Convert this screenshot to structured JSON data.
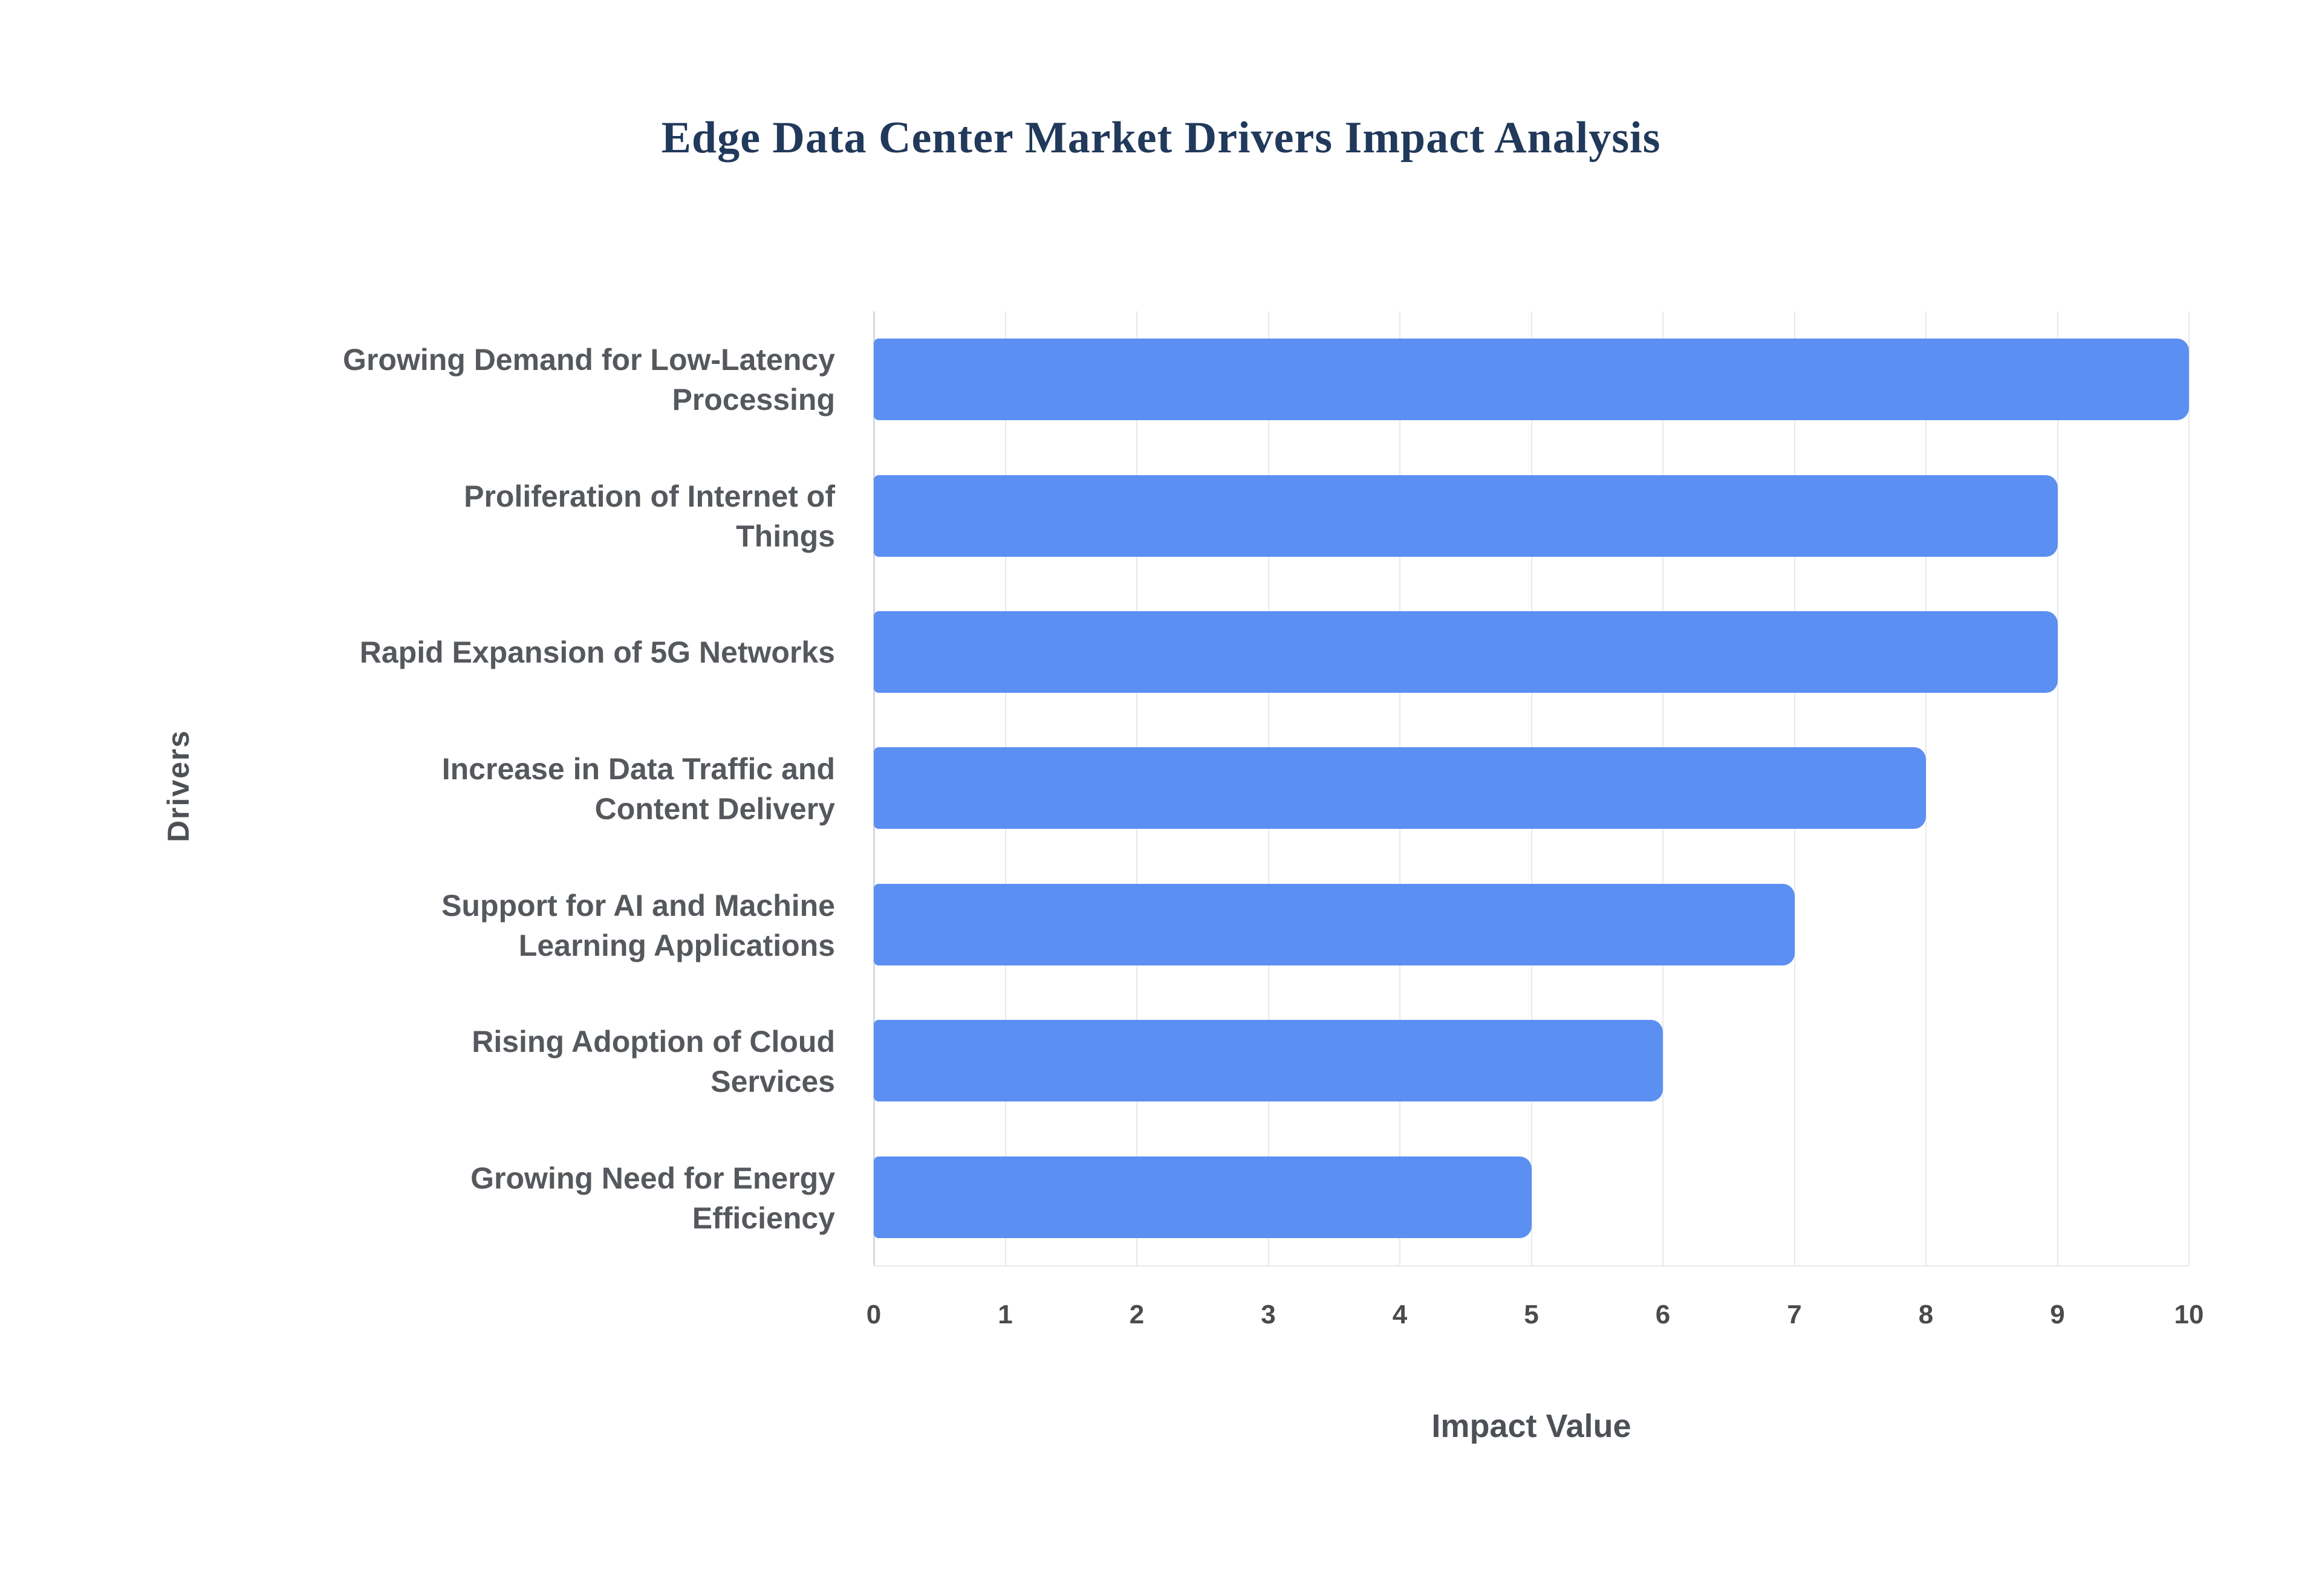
{
  "page": {
    "background": "#ffffff"
  },
  "chart_data": {
    "type": "bar",
    "orientation": "horizontal",
    "title": "Edge Data Center Market Drivers Impact Analysis",
    "xlabel": "Impact Value",
    "ylabel": "Drivers",
    "xlim": [
      0,
      10
    ],
    "xticks": [
      0,
      1,
      2,
      3,
      4,
      5,
      6,
      7,
      8,
      9,
      10
    ],
    "grid": true,
    "legend": false,
    "categories": [
      "Growing Demand for Low-Latency Processing",
      "Proliferation of Internet of Things",
      "Rapid Expansion of 5G Networks",
      "Increase in Data Traffic and Content Delivery",
      "Support for AI and Machine Learning Applications",
      "Rising Adoption of Cloud Services",
      "Growing Need for Energy Efficiency"
    ],
    "categories_wrapped": [
      [
        "Growing Demand for Low-Latency",
        "Processing"
      ],
      [
        "Proliferation of Internet of",
        "Things"
      ],
      [
        "Rapid Expansion of 5G Networks"
      ],
      [
        "Increase in Data Traffic and",
        "Content Delivery"
      ],
      [
        "Support for AI and Machine",
        "Learning Applications"
      ],
      [
        "Rising Adoption of Cloud",
        "Services"
      ],
      [
        "Growing Need for Energy",
        "Efficiency"
      ]
    ],
    "values": [
      10,
      9,
      9,
      8,
      7,
      6,
      5
    ],
    "colors": {
      "bar": "#5b8ff2",
      "title": "#21395a",
      "category_label": "#55585c",
      "tick_label": "#4b4b4b",
      "axis_title": "#4d5156",
      "gridline": "#e7e9ec",
      "axis_line": "#d6d9dc",
      "background": "#ffffff"
    }
  }
}
